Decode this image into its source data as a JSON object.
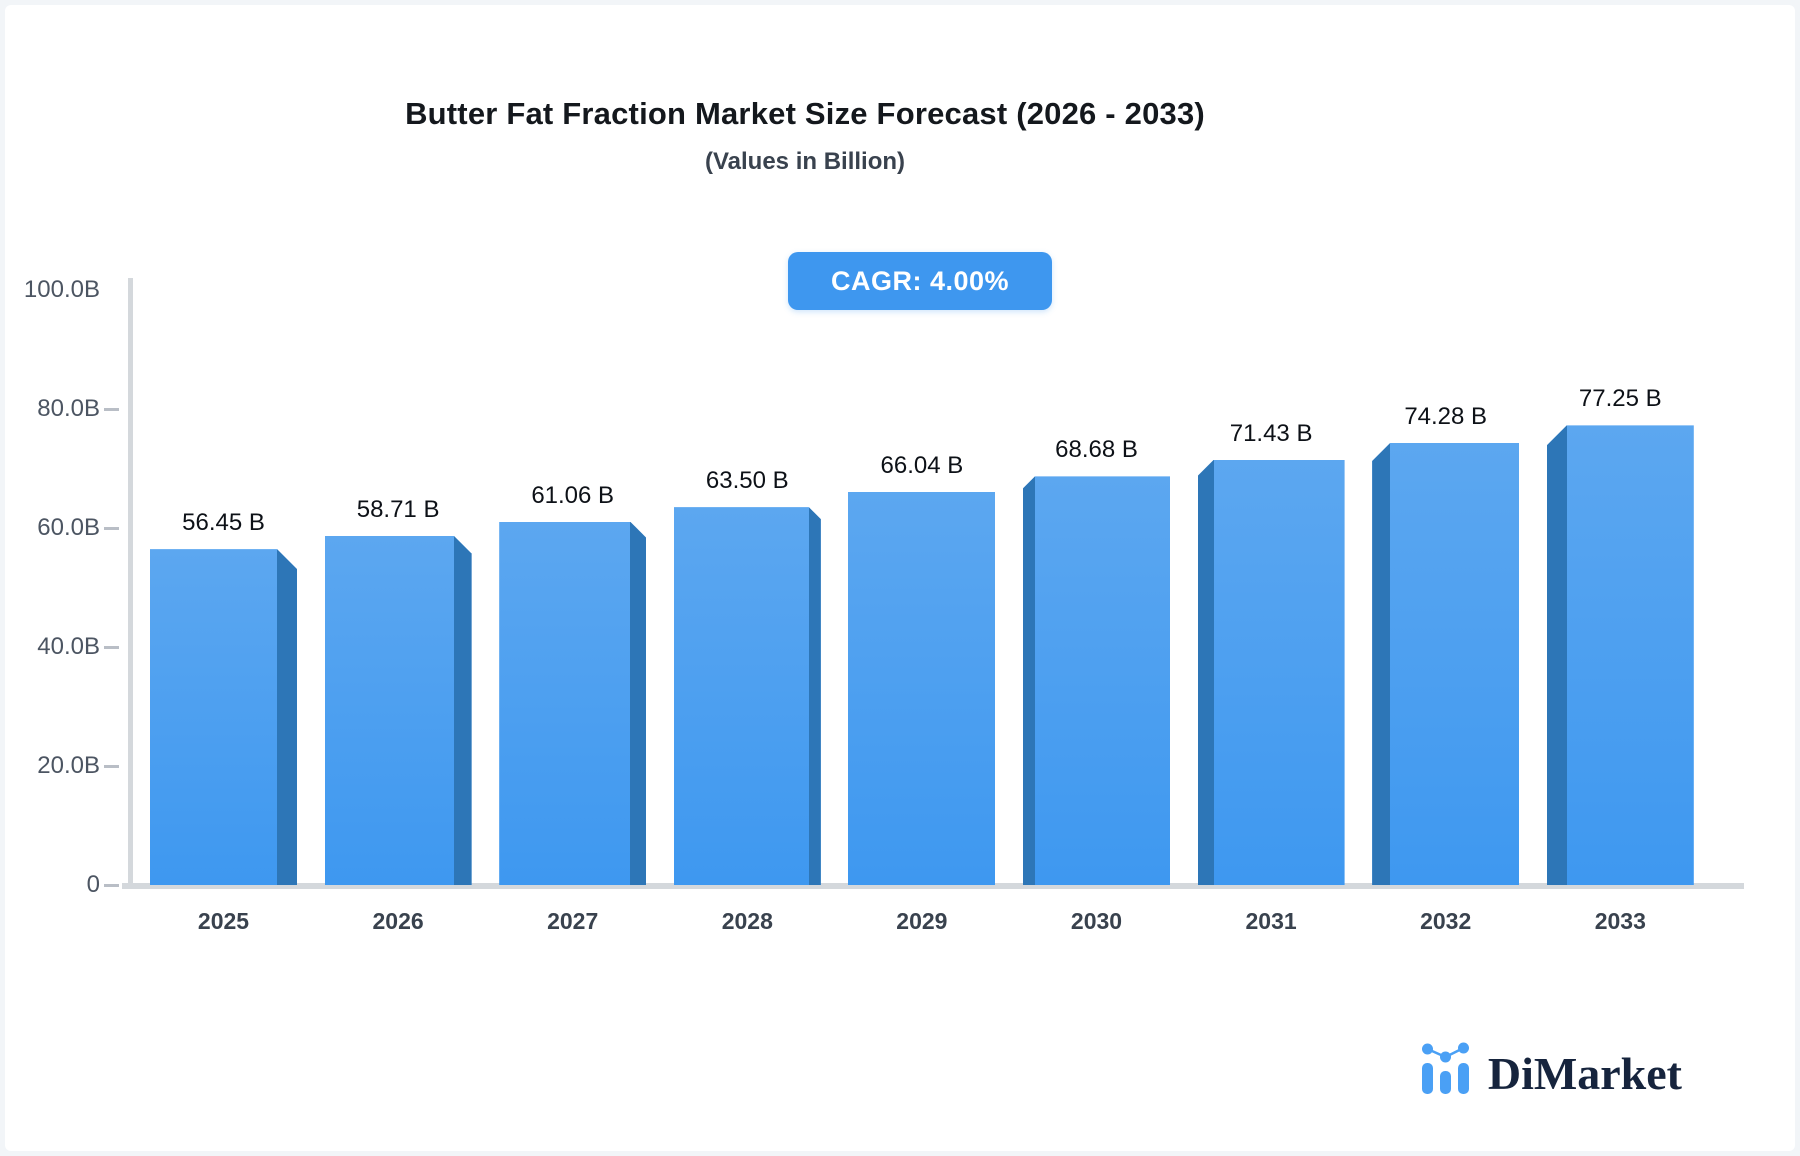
{
  "title": "Butter Fat Fraction Market Size Forecast (2026 - 2033)",
  "subtitle": "(Values in Billion)",
  "badge": {
    "label": "CAGR: 4.00%",
    "bg": "#3e97ef"
  },
  "chart_data": {
    "type": "bar",
    "title": "Butter Fat Fraction Market Size Forecast (2026 - 2033)",
    "subtitle": "(Values in Billion)",
    "cagr": "4.00%",
    "categories": [
      "2025",
      "2026",
      "2027",
      "2028",
      "2029",
      "2030",
      "2031",
      "2032",
      "2033"
    ],
    "values": [
      56.45,
      58.71,
      61.06,
      63.5,
      66.04,
      68.68,
      71.43,
      74.28,
      77.25
    ],
    "bar_labels": [
      "56.45 B",
      "58.71 B",
      "61.06 B",
      "63.50 B",
      "66.04 B",
      "68.68 B",
      "71.43 B",
      "74.28 B",
      "77.25 B"
    ],
    "unit": "Billion",
    "ylim": [
      0,
      100
    ],
    "yticks": [
      {
        "label": "100.0B",
        "value": 100,
        "dash": false
      },
      {
        "label": "80.0B",
        "value": 80,
        "dash": true
      },
      {
        "label": "60.0B",
        "value": 60,
        "dash": true
      },
      {
        "label": "40.0B",
        "value": 40,
        "dash": true
      },
      {
        "label": "20.0B",
        "value": 20,
        "dash": true
      },
      {
        "label": "0",
        "value": 0,
        "dash": true
      }
    ],
    "grid": false,
    "legend": null,
    "bar_color_top": "#5ca7f0",
    "bar_color_bottom": "#3e98f0",
    "bar_side_color": "#2d76b7"
  },
  "logo": {
    "text": "DiMarket",
    "icon": "mini-bar-chart-icon",
    "text_color": "#16243d",
    "icon_color": "#4aa0f5"
  }
}
